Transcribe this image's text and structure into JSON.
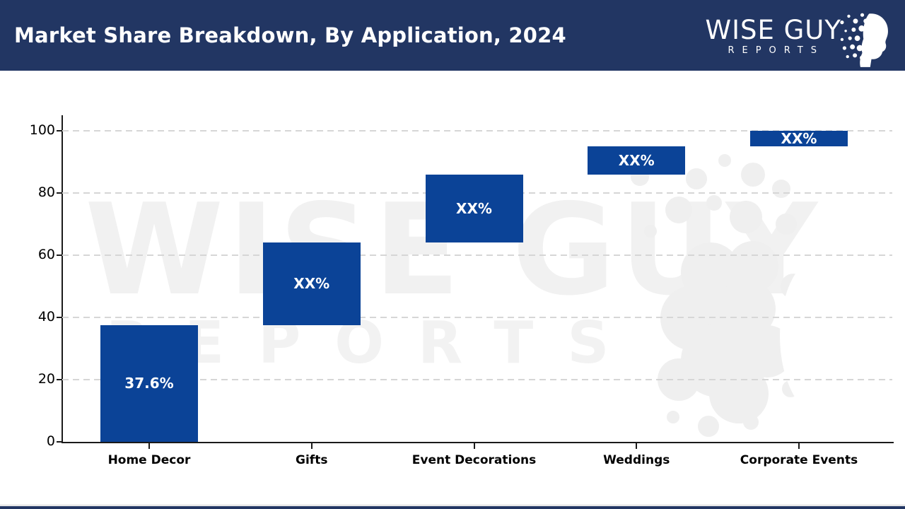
{
  "header": {
    "title": "Market Share Breakdown, By Application, 2024",
    "bg_color": "#223663",
    "logo": {
      "line1": "WISE GUY",
      "line2": "REPORTS"
    }
  },
  "watermark": {
    "line1": "WISE GUY",
    "line2": "REPORTS"
  },
  "chart_data": {
    "type": "bar",
    "subtype": "waterfall",
    "title": "Market Share Breakdown, By Application, 2024",
    "categories": [
      "Home Decor",
      "Gifts",
      "Event Decorations",
      "Weddings",
      "Corporate Events"
    ],
    "segments": [
      {
        "category": "Home Decor",
        "start": 0,
        "end": 37.6,
        "label": "37.6%"
      },
      {
        "category": "Gifts",
        "start": 37.6,
        "end": 64,
        "label": "XX%"
      },
      {
        "category": "Event Decorations",
        "start": 64,
        "end": 86,
        "label": "XX%"
      },
      {
        "category": "Weddings",
        "start": 86,
        "end": 95,
        "label": "XX%"
      },
      {
        "category": "Corporate Events",
        "start": 95,
        "end": 100,
        "label": "XX%"
      }
    ],
    "y_ticks": [
      0,
      20,
      40,
      60,
      80,
      100
    ],
    "ylim": [
      0,
      105
    ],
    "xlabel": "",
    "ylabel": "",
    "grid": true,
    "grid_style": "dashed",
    "legend": "none",
    "bar_color": "#0b4397",
    "grid_color": "#d6d6d6",
    "label_color": "#ffffff"
  },
  "footer": {
    "bar_color": "#223663"
  }
}
